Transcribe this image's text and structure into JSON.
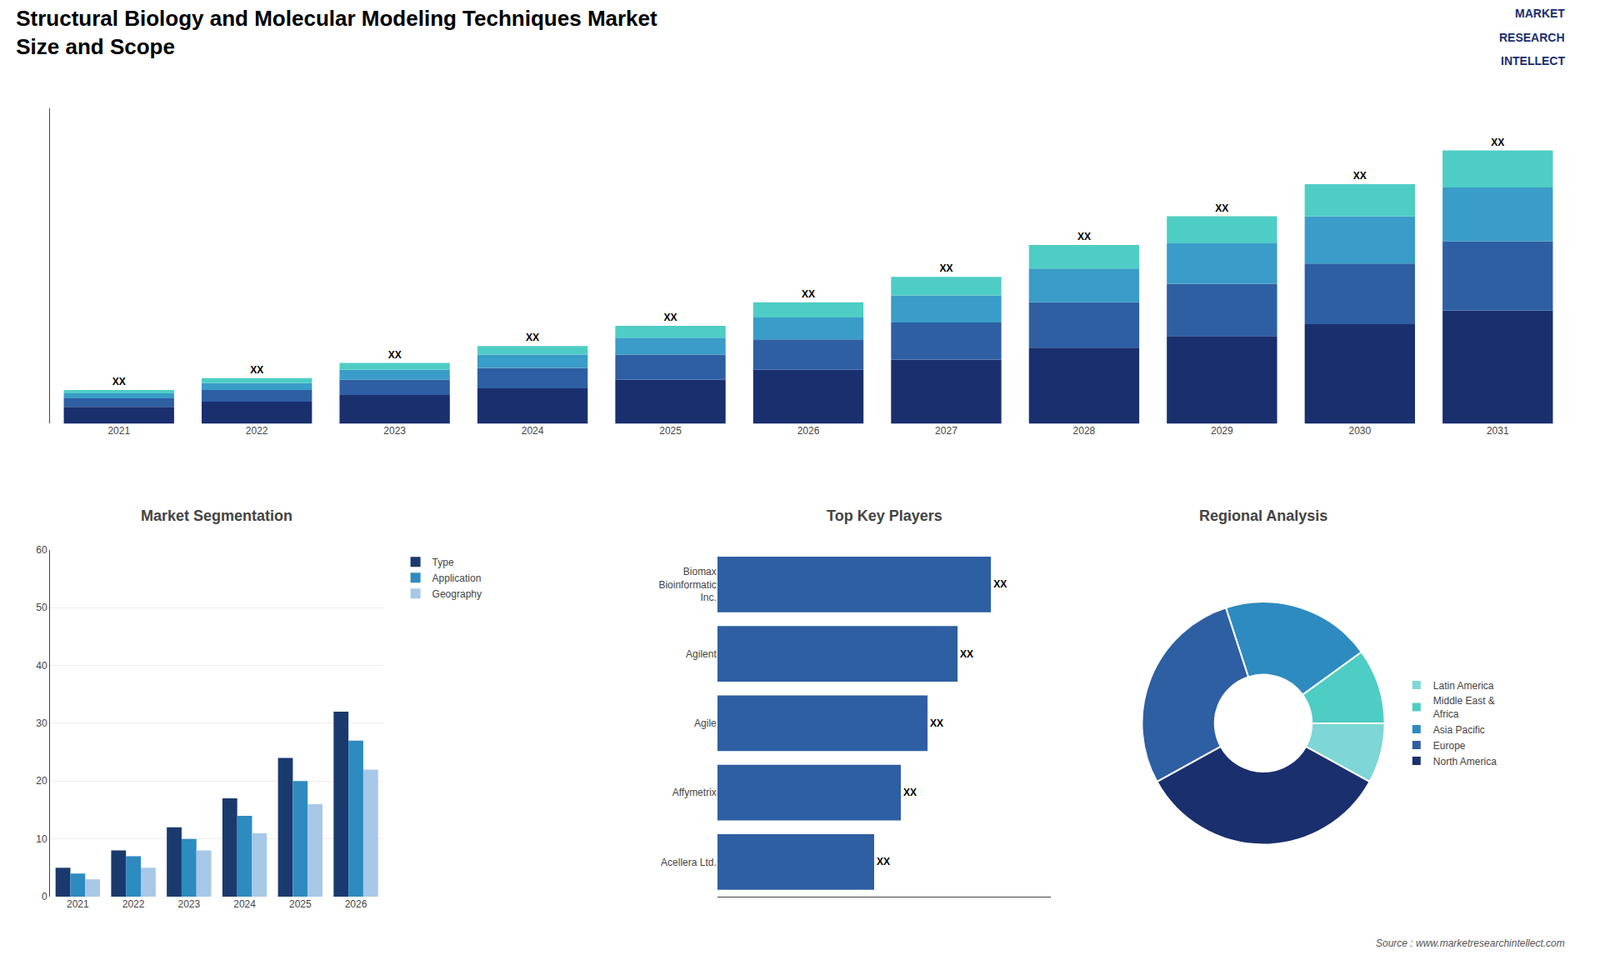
{
  "title": "Structural Biology and Molecular Modeling Techniques Market",
  "subtitle": "Size and Scope",
  "annotations": [
    "MARKET",
    "RESEARCH",
    "INTELLECT",
    "Source : www.marketresearchintellect.com"
  ],
  "chart_data": [
    {
      "type": "bar",
      "stacked": true,
      "categories": [
        "2021",
        "2022",
        "2023",
        "2024",
        "2025",
        "2026",
        "2027",
        "2028",
        "2029",
        "2030",
        "2031"
      ],
      "series": [
        {
          "color": "#1a2f6e",
          "values": [
            1,
            1.3,
            1.7,
            2.1,
            2.6,
            3.2,
            3.8,
            4.5,
            5.2,
            5.9,
            6.7
          ]
        },
        {
          "color": "#2e5fa3",
          "values": [
            0.5,
            0.7,
            0.9,
            1.2,
            1.5,
            1.8,
            2.2,
            2.7,
            3.1,
            3.6,
            4.1
          ]
        },
        {
          "color": "#3a9cc8",
          "values": [
            0.3,
            0.4,
            0.6,
            0.8,
            1.0,
            1.3,
            1.6,
            2.0,
            2.4,
            2.8,
            3.2
          ]
        },
        {
          "color": "#4ecdc4",
          "values": [
            0.2,
            0.3,
            0.4,
            0.5,
            0.7,
            0.9,
            1.1,
            1.4,
            1.6,
            1.9,
            2.2
          ],
          "value_labels": [
            "XX",
            "XX",
            "XX",
            "XX",
            "XX",
            "XX",
            "XX",
            "XX",
            "XX",
            "XX",
            "XX"
          ]
        }
      ],
      "ylim": [
        0,
        18.7
      ],
      "yticks": [],
      "tick_labels": "x",
      "grid": false
    },
    {
      "type": "bar",
      "title": "Market Segmentation",
      "categories": [
        "2021",
        "2022",
        "2023",
        "2024",
        "2025",
        "2026"
      ],
      "series": [
        {
          "name": "Type",
          "color": "#1a3a6e",
          "values": [
            5,
            8,
            12,
            17,
            24,
            32
          ]
        },
        {
          "name": "Application",
          "color": "#2e8bbf",
          "values": [
            4,
            7,
            10,
            14,
            20,
            27
          ]
        },
        {
          "name": "Geography",
          "color": "#a8c8e8",
          "values": [
            3,
            5,
            8,
            11,
            16,
            22
          ]
        }
      ],
      "ylim": [
        0,
        60
      ],
      "yticks": [
        0,
        10,
        20,
        30,
        40,
        50,
        60
      ],
      "grid": true,
      "legend": "right"
    },
    {
      "type": "bar",
      "title": "Top Key Players",
      "orientation": "horizontal",
      "categories": [
        "Biomax\nBioinformatic\nInc.",
        "Agilent",
        "Agile",
        "Affymetrix",
        "Acellera Ltd."
      ],
      "values": [
        0.82,
        0.72,
        0.63,
        0.55,
        0.47
      ],
      "value_labels": [
        "XX",
        "XX",
        "XX",
        "XX",
        "XX"
      ],
      "color": "#2e5fa3",
      "xlim": [
        0,
        1
      ],
      "xticks": [],
      "tick_labels": "y",
      "grid": false
    },
    {
      "type": "pie",
      "title": "Regional Analysis",
      "categories": [
        "Latin America",
        "Middle East &\nAfrica",
        "Asia Pacific",
        "Europe",
        "North America"
      ],
      "values": [
        8,
        10,
        20,
        28,
        34
      ],
      "colors": [
        "#7ed6d6",
        "#4ecdc4",
        "#2e8bbf",
        "#2e5fa3",
        "#1a2f6e"
      ],
      "legend": "right"
    }
  ]
}
